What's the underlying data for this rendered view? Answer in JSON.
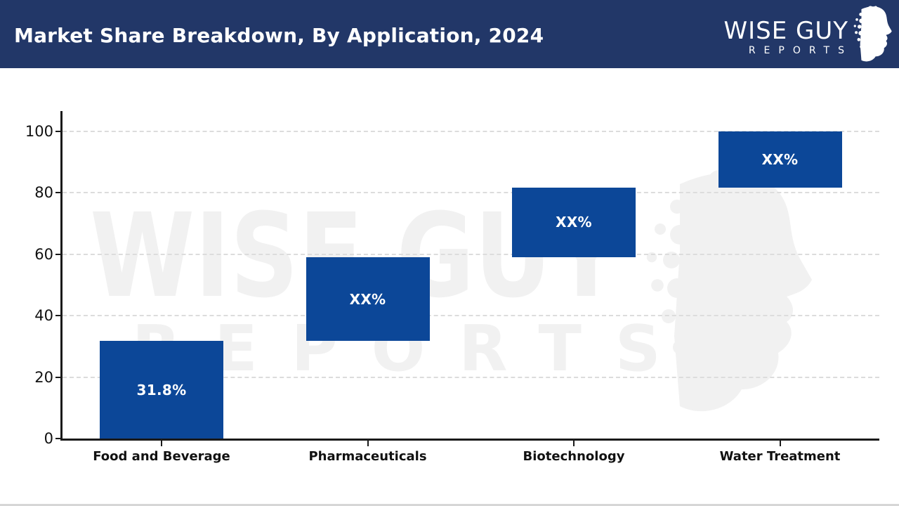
{
  "header": {
    "title": "Market Share Breakdown, By Application, 2024",
    "logo_line1": "WISE GUY",
    "logo_line2": "REPORTS"
  },
  "watermark": {
    "line1": "WISE GUY",
    "line2": "REPORTS"
  },
  "colors": {
    "header_bg": "#223768",
    "bar": "#0c4798",
    "gridline": "#dcdcdc",
    "axis": "#1a1a1a",
    "watermark": "#f1f1f1",
    "value_label": "#ffffff"
  },
  "chart_data": {
    "type": "bar",
    "subtype": "waterfall",
    "title": "Market Share Breakdown, By Application, 2024",
    "categories": [
      "Food and Beverage",
      "Pharmaceuticals",
      "Biotechnology",
      "Water Treatment"
    ],
    "segments": [
      {
        "category": "Food and Beverage",
        "start": 0,
        "end": 31.8,
        "label": "31.8%"
      },
      {
        "category": "Pharmaceuticals",
        "start": 31.8,
        "end": 59.0,
        "label": "XX%"
      },
      {
        "category": "Biotechnology",
        "start": 59.0,
        "end": 81.8,
        "label": "XX%"
      },
      {
        "category": "Water Treatment",
        "start": 81.8,
        "end": 100,
        "label": "XX%"
      }
    ],
    "y_ticks": [
      0,
      20,
      40,
      60,
      80,
      100
    ],
    "ylim": [
      0,
      107
    ],
    "xlabel": "",
    "ylabel": "",
    "grid": "horizontal-dashed",
    "legend": "none",
    "bar_color": "#0c4798"
  }
}
